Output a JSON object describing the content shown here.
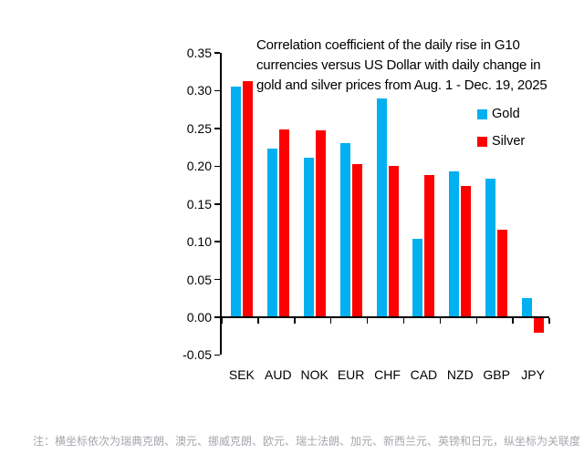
{
  "page": {
    "background": "#FFFFFF"
  },
  "chart_data": {
    "type": "bar",
    "title": "Correlation coefficient of the daily rise in G10 currencies versus US Dollar with daily change in gold and silver prices from Aug. 1 - Dec. 19, 2025",
    "title_lines": [
      "Correlation coefficient of the daily rise in G10",
      "currencies versus US Dollar with daily change in",
      "gold and silver prices from Aug. 1 - Dec. 19, 2025"
    ],
    "categories": [
      "SEK",
      "AUD",
      "NOK",
      "EUR",
      "CHF",
      "CAD",
      "NZD",
      "GBP",
      "JPY"
    ],
    "series": [
      {
        "name": "Gold",
        "color": "#00B0F0",
        "values": [
          0.305,
          0.223,
          0.211,
          0.231,
          0.29,
          0.104,
          0.193,
          0.183,
          0.025
        ]
      },
      {
        "name": "Silver",
        "color": "#FF0000",
        "values": [
          0.313,
          0.249,
          0.248,
          0.203,
          0.2,
          0.188,
          0.174,
          0.116,
          -0.021
        ]
      }
    ],
    "ylim": [
      -0.05,
      0.35
    ],
    "ytick_step": 0.05,
    "ytick_labels": [
      "-0.05",
      "0.00",
      "0.05",
      "0.10",
      "0.15",
      "0.20",
      "0.25",
      "0.30",
      "0.35"
    ],
    "xlabel": "",
    "ylabel": "",
    "legend_position": "upper right inside",
    "grid": false,
    "axis_color": "#000000",
    "text_color": "#000000"
  },
  "footnote": {
    "text": "注：横坐标依次为瑞典克朗、澳元、挪威克朗、欧元、瑞士法朗、加元、新西兰元、英镑和日元，纵坐标为关联度",
    "color": "#A6A6AE"
  }
}
